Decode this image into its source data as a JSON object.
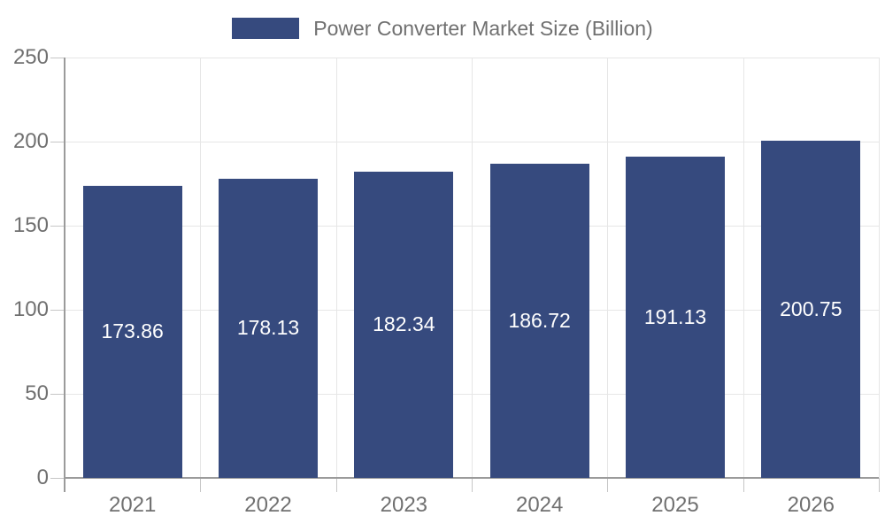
{
  "legend": {
    "label": "Power Converter Market Size (Billion)",
    "swatch_color": "#364A7E"
  },
  "chart_data": {
    "type": "bar",
    "title": "Power Converter Market Size (Billion)",
    "categories": [
      "2021",
      "2022",
      "2023",
      "2024",
      "2025",
      "2026"
    ],
    "values": [
      173.86,
      178.13,
      182.34,
      186.72,
      191.13,
      200.75
    ],
    "series_name": "Power Converter Market Size (Billion)",
    "xlabel": "",
    "ylabel": "",
    "ylim": [
      0,
      250
    ],
    "yticks": [
      0,
      50,
      100,
      150,
      200,
      250
    ],
    "grid": true,
    "legend_position": "top-center",
    "bar_color": "#364A7E",
    "value_label_color": "#ffffff",
    "axis_text_color": "#707070",
    "gridline_color": "#e6e6e6",
    "axis_line_color": "#9b9b9b"
  }
}
